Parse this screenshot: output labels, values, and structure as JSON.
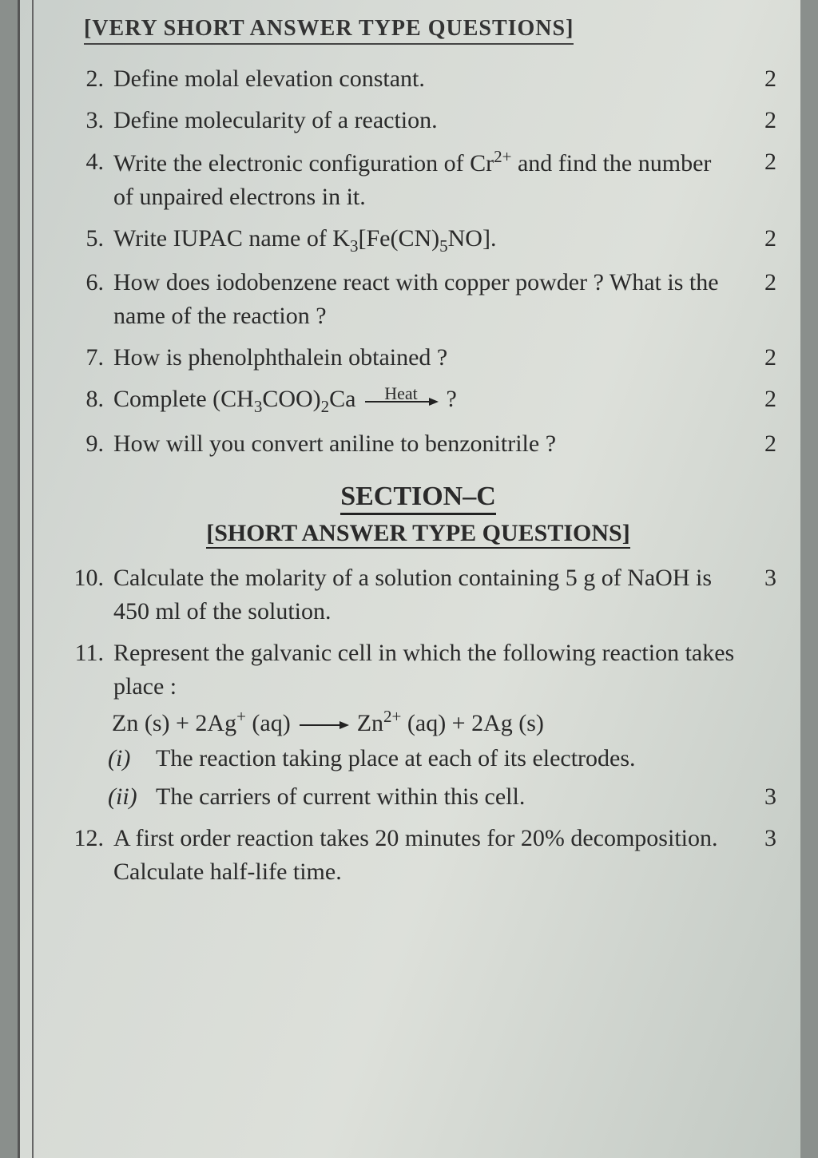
{
  "top_header": "[VERY SHORT ANSWER TYPE QUESTIONS]",
  "questions_a": [
    {
      "num": "2.",
      "text": "Define molal elevation constant.",
      "marks": "2"
    },
    {
      "num": "3.",
      "text": "Define molecularity of a reaction.",
      "marks": "2"
    },
    {
      "num": "4.",
      "text": "Write the electronic configuration of Cr<sup>2+</sup> and find the number of unpaired electrons in it.",
      "marks": "2"
    },
    {
      "num": "5.",
      "text": "Write IUPAC name of K<sub>3</sub>[Fe(CN)<sub>5</sub>NO].",
      "marks": "2"
    },
    {
      "num": "6.",
      "text": "How does iodobenzene react with copper powder ? What is the name of the reaction ?",
      "marks": "2"
    },
    {
      "num": "7.",
      "text": "How is phenolphthalein obtained ?",
      "marks": "2"
    }
  ],
  "q8": {
    "num": "8.",
    "prefix": "Complete (CH",
    "sub1": "3",
    "mid1": "COO)",
    "sub2": "2",
    "mid2": "Ca",
    "arrow_label": "Heat",
    "suffix": "?",
    "marks": "2"
  },
  "q9": {
    "num": "9.",
    "text": "How will you convert aniline to benzonitrile ?",
    "marks": "2"
  },
  "section_c_title": "SECTION–C",
  "section_c_sub": "[SHORT ANSWER TYPE QUESTIONS]",
  "q10": {
    "num": "10.",
    "text": "Calculate the molarity of a solution containing 5 g of NaOH is 450 ml of the solution.",
    "marks": "3"
  },
  "q11": {
    "num": "11.",
    "text": "Represent the galvanic cell in which the following reaction takes place :",
    "eq_lhs": "Zn (s) + 2Ag<sup>+</sup> (aq)",
    "eq_rhs": "Zn<sup>2+</sup> (aq) + 2Ag (s)",
    "sub_i_label": "(i)",
    "sub_i_text": "The reaction taking place at each of its electrodes.",
    "sub_ii_label": "(ii)",
    "sub_ii_text": "The carriers of current within this cell.",
    "marks": "3"
  },
  "q12": {
    "num": "12.",
    "text": "A first order reaction takes 20 minutes for 20% decomposition. Calculate half-life time.",
    "marks": "3"
  }
}
